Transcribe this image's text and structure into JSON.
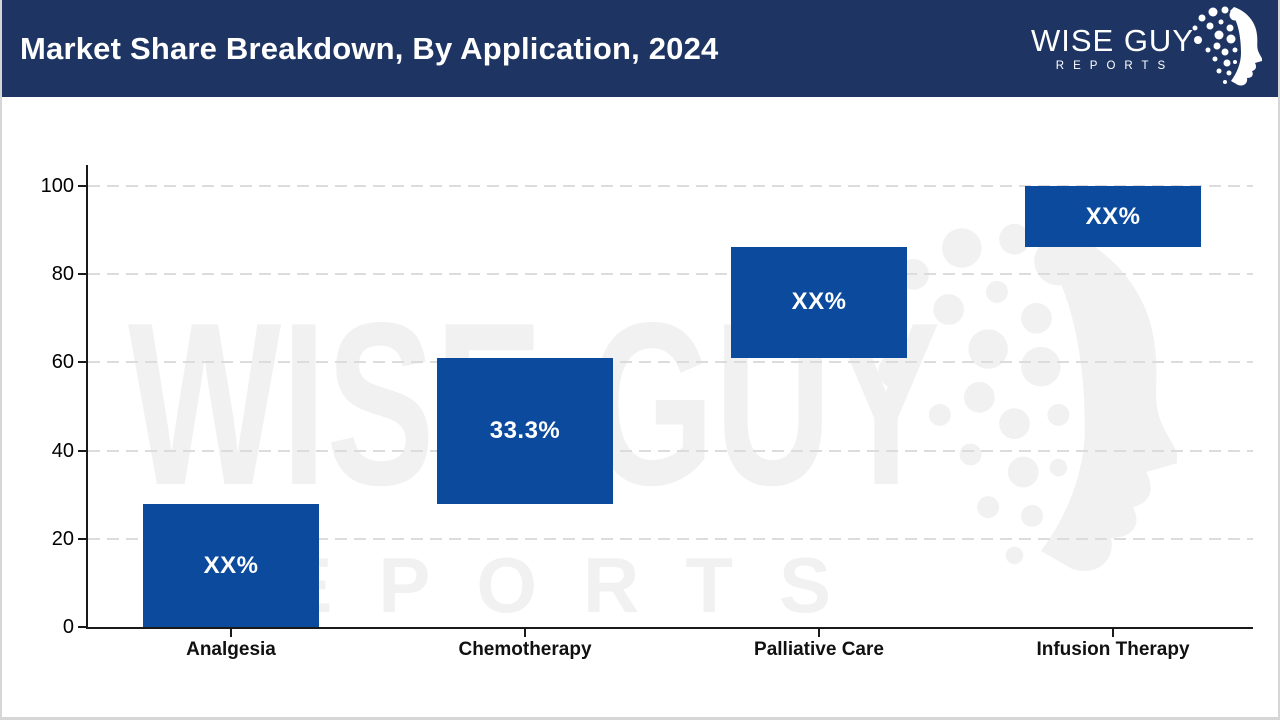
{
  "header": {
    "title": "Market Share Breakdown, By Application, 2024",
    "logo": {
      "line1": "WISE GUY",
      "line2": "REPORTS"
    }
  },
  "watermark": {
    "line1": "WISE GUY",
    "line2": "REPORTS"
  },
  "chart_data": {
    "type": "bar",
    "subtype": "waterfall",
    "title": "Market Share Breakdown, By Application, 2024",
    "categories": [
      "Analgesia",
      "Chemotherapy",
      "Palliative Care",
      "Infusion Therapy"
    ],
    "segments": [
      {
        "category": "Analgesia",
        "start": 0,
        "end": 27.8,
        "value": 27.8,
        "label": "XX%"
      },
      {
        "category": "Chemotherapy",
        "start": 27.8,
        "end": 61.1,
        "value": 33.3,
        "label": "33.3%"
      },
      {
        "category": "Palliative Care",
        "start": 61.1,
        "end": 86.1,
        "value": 25.0,
        "label": "XX%"
      },
      {
        "category": "Infusion Therapy",
        "start": 86.1,
        "end": 100,
        "value": 13.9,
        "label": "XX%"
      }
    ],
    "yticks": [
      0,
      20,
      40,
      60,
      80,
      100
    ],
    "ylim": [
      0,
      105
    ],
    "xlabel": "",
    "ylabel": "",
    "grid": "horizontal-dashed",
    "legend_position": "none",
    "bar_color": "#0b4a9c",
    "bar_label_color": "#ffffff",
    "header_bg_color": "#1e3563",
    "watermark_color": "#f1f1f1"
  }
}
